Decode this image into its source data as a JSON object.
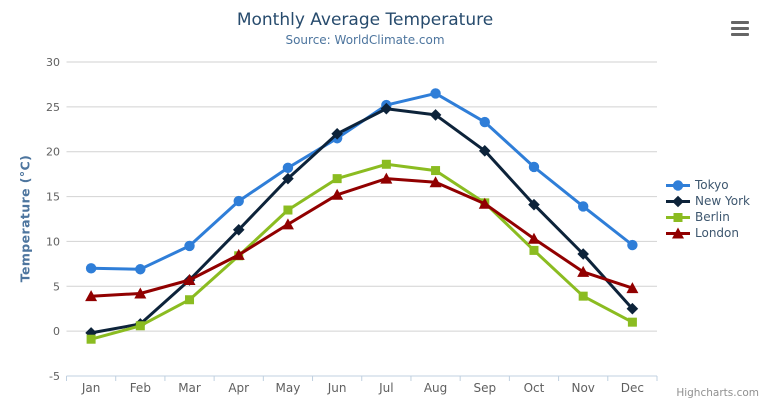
{
  "chart": {
    "title": "Monthly Average Temperature",
    "subtitle": "Source: WorldClimate.com",
    "credit": "Highcharts.com"
  },
  "colors": {
    "background": "#ffffff",
    "title": "#274b6d",
    "subtitle": "#4d759e",
    "axis_title": "#4d759e",
    "tick_label": "#606060",
    "grid": "#d2d2d2",
    "axis_line": "#c0d0e0",
    "legend_text": "#3e576f",
    "credit": "#909090",
    "menu_icon": "#666666"
  },
  "icons": {
    "context_menu": "hamburger-icon"
  },
  "chart_data": {
    "type": "line",
    "title": "Monthly Average Temperature",
    "subtitle": "Source: WorldClimate.com",
    "categories": [
      "Jan",
      "Feb",
      "Mar",
      "Apr",
      "May",
      "Jun",
      "Jul",
      "Aug",
      "Sep",
      "Oct",
      "Nov",
      "Dec"
    ],
    "series": [
      {
        "name": "Tokyo",
        "color": "#2f7ed8",
        "marker": "circle",
        "values": [
          7.0,
          6.9,
          9.5,
          14.5,
          18.2,
          21.5,
          25.2,
          26.5,
          23.3,
          18.3,
          13.9,
          9.6
        ]
      },
      {
        "name": "New York",
        "color": "#0d233a",
        "marker": "diamond",
        "values": [
          -0.2,
          0.8,
          5.7,
          11.3,
          17.0,
          22.0,
          24.8,
          24.1,
          20.1,
          14.1,
          8.6,
          2.5
        ]
      },
      {
        "name": "Berlin",
        "color": "#8bbc21",
        "marker": "square",
        "values": [
          -0.9,
          0.6,
          3.5,
          8.4,
          13.5,
          17.0,
          18.6,
          17.9,
          14.3,
          9.0,
          3.9,
          1.0
        ]
      },
      {
        "name": "London",
        "color": "#910000",
        "marker": "triangle",
        "values": [
          3.9,
          4.2,
          5.7,
          8.5,
          11.9,
          15.2,
          17.0,
          16.6,
          14.2,
          10.3,
          6.6,
          4.8
        ]
      }
    ],
    "xlabel": "",
    "ylabel": "Temperature (°C)",
    "ylim": [
      -5,
      30
    ],
    "yticks": [
      -5,
      0,
      5,
      10,
      15,
      20,
      25,
      30
    ],
    "grid": true,
    "legend_position": "right"
  }
}
